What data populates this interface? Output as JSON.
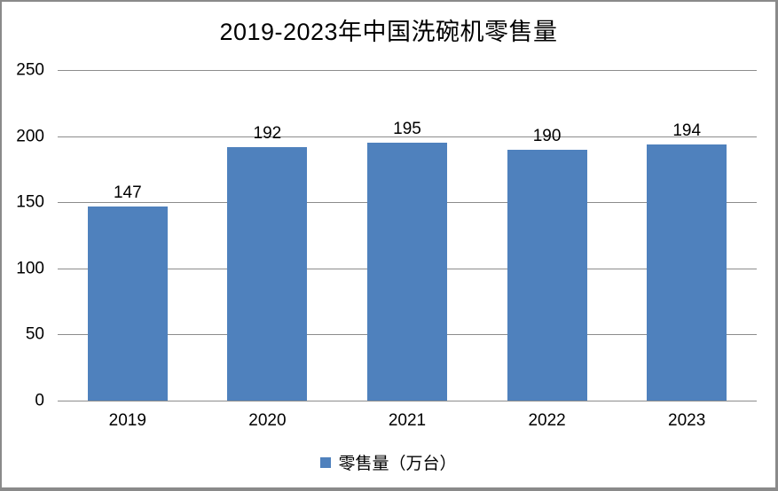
{
  "frame": {
    "background": "#FFFFFF",
    "border_color": "#8A8A8A"
  },
  "chart_data": {
    "type": "bar",
    "title": "2019-2023年中国洗碗机零售量",
    "categories": [
      "2019",
      "2020",
      "2021",
      "2022",
      "2023"
    ],
    "values": [
      147,
      192,
      195,
      190,
      194
    ],
    "series": [
      {
        "name": "零售量（万台）",
        "values": [
          147,
          192,
          195,
          190,
          194
        ]
      }
    ],
    "xlabel": "",
    "ylabel": "",
    "ylim": [
      0,
      250
    ],
    "yticks": [
      0,
      50,
      100,
      150,
      200,
      250
    ],
    "grid": true,
    "data_labels": true,
    "legend": {
      "label": "零售量（万台）",
      "position": "bottom"
    },
    "colors": {
      "bar": "#4F81BD",
      "gridline": "#8C8C8C",
      "text": "#000000"
    }
  }
}
